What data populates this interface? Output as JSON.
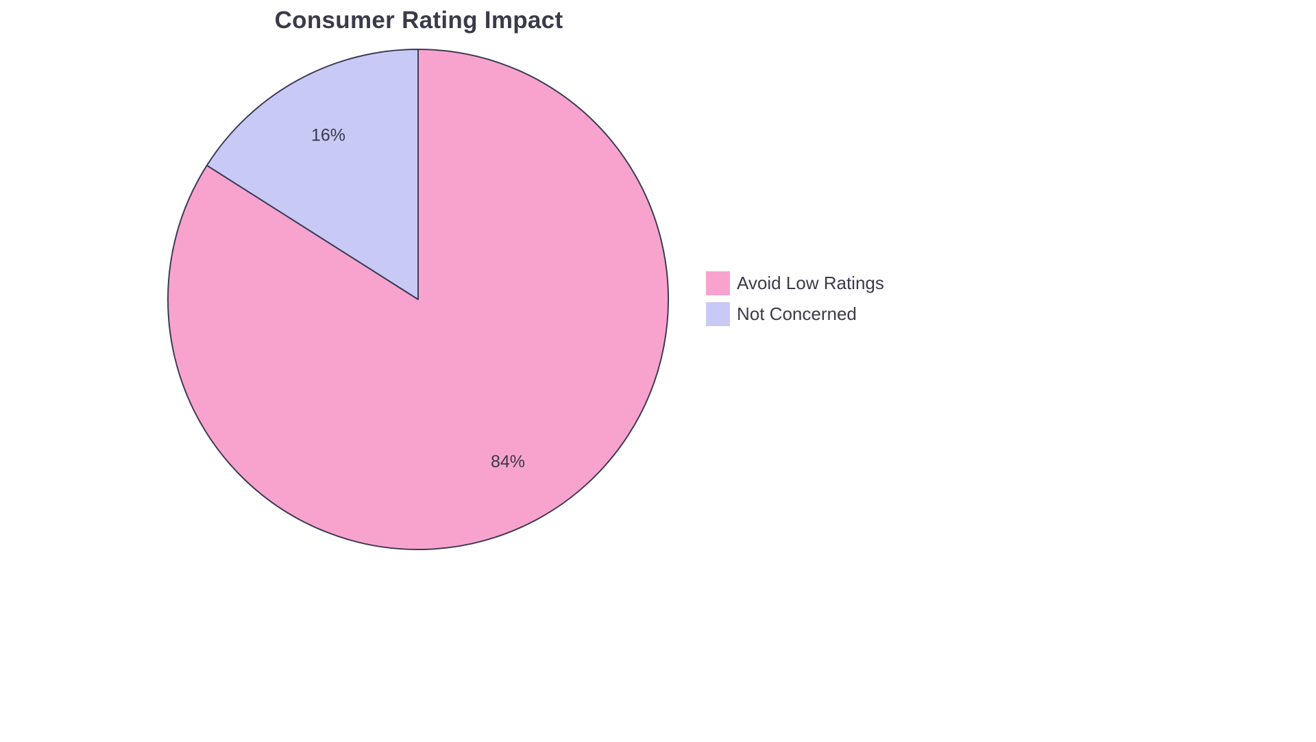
{
  "chart_data": {
    "type": "pie",
    "title": "Consumer Rating Impact",
    "slices": [
      {
        "label": "Avoid Low Ratings",
        "value": 84,
        "display": "84%",
        "color": "#F8A3CD"
      },
      {
        "label": "Not Concerned",
        "value": 16,
        "display": "16%",
        "color": "#C9C9F6"
      }
    ],
    "start_angle_deg": 0,
    "direction": "clockwise",
    "legend_position": "right",
    "stroke_color": "#3B3B55",
    "text_color": "#3A3A4A",
    "background_color": "#FFFFFF"
  }
}
